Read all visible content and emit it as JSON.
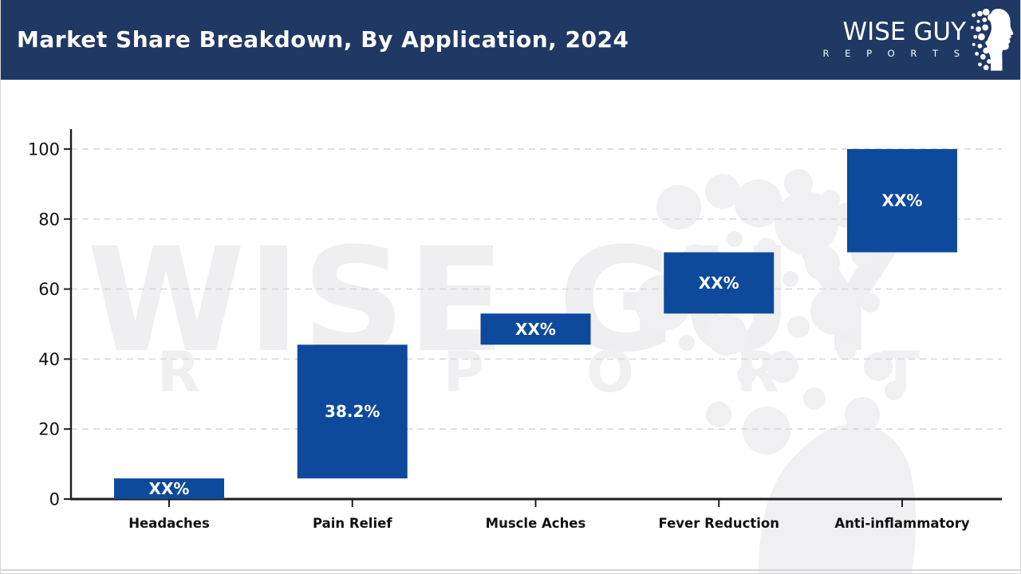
{
  "header": {
    "title": "Market Share Breakdown, By Application, 2024",
    "logo": {
      "line1": "WISE GUY",
      "line2": "R E P O R T S"
    }
  },
  "watermark": {
    "line1": "WISE GUY",
    "line2": "R E P O R T S"
  },
  "chart_data": {
    "type": "bar",
    "subtype": "floating-waterfall-segments",
    "title": "Market Share Breakdown, By Application, 2024",
    "categories": [
      "Headaches",
      "Pain Relief",
      "Muscle Aches",
      "Fever Reduction",
      "Anti-inflammatory"
    ],
    "segments": [
      {
        "category": "Headaches",
        "start": 0.0,
        "end": 5.9,
        "value": 5.9,
        "label": "XX%"
      },
      {
        "category": "Pain Relief",
        "start": 5.9,
        "end": 44.1,
        "value": 38.2,
        "label": "38.2%"
      },
      {
        "category": "Muscle Aches",
        "start": 44.1,
        "end": 53.0,
        "value": 8.9,
        "label": "XX%"
      },
      {
        "category": "Fever Reduction",
        "start": 53.0,
        "end": 70.5,
        "value": 17.5,
        "label": "XX%"
      },
      {
        "category": "Anti-inflammatory",
        "start": 70.5,
        "end": 100.0,
        "value": 29.5,
        "label": "XX%"
      }
    ],
    "y_ticks": [
      0,
      20,
      40,
      60,
      80,
      100
    ],
    "ylim": [
      0,
      105
    ],
    "xlabel": "",
    "ylabel": "",
    "grid": "dashed-horizontal",
    "legend": "none",
    "bar_color": "#0d4a9c",
    "bar_label_color": "#ffffff"
  },
  "colors": {
    "header_bg": "#1f3864",
    "bar": "#0d4a9c",
    "grid": "#d8d8d8",
    "axis": "#1c1c1c",
    "tick_label": "#111111",
    "watermark": "#efeff2",
    "footer_rule": "#d6d6d9"
  }
}
